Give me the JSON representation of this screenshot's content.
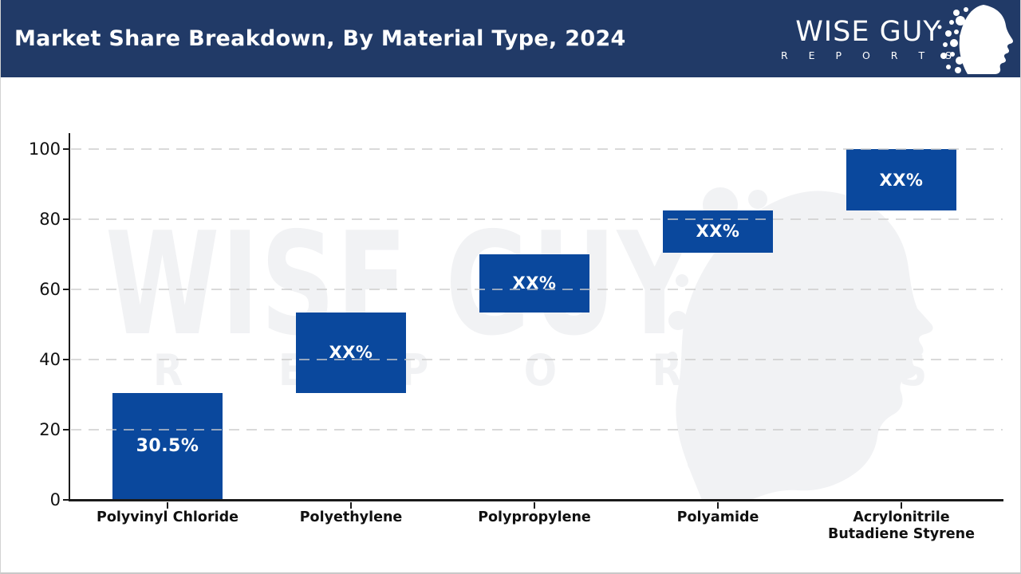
{
  "header": {
    "title": "Market Share Breakdown, By Material Type, 2024",
    "logo": {
      "line1": "WISE GUY",
      "line2": "R E P O R T S"
    }
  },
  "watermark": {
    "line1": "WISE GUY",
    "line2": "R E P O R T S"
  },
  "colors": {
    "header_bg": "#213a67",
    "bar": "#0a489d",
    "axis": "#1a1a1a",
    "gridline": "#dcdcdc",
    "watermark": "#f1f2f4",
    "title_text": "#ffffff"
  },
  "chart_data": {
    "type": "bar",
    "subtype": "waterfall",
    "title": "Market Share Breakdown, By Material Type, 2024",
    "xlabel": "",
    "ylabel": "",
    "ylim": [
      0,
      105
    ],
    "yticks": [
      0,
      20,
      40,
      60,
      80,
      100
    ],
    "grid": "horizontal-dashed",
    "legend": "none",
    "categories": [
      "Polyvinyl Chloride",
      "Polyethylene",
      "Polypropylene",
      "Polyamide",
      "Acrylonitrile\nButadiene Styrene"
    ],
    "bars": [
      {
        "category": "Polyvinyl Chloride",
        "start": 0,
        "end": 30.5,
        "label": "30.5%"
      },
      {
        "category": "Polyethylene",
        "start": 30.5,
        "end": 53.5,
        "label": "XX%"
      },
      {
        "category": "Polypropylene",
        "start": 53.5,
        "end": 70,
        "label": "XX%"
      },
      {
        "category": "Polyamide",
        "start": 70.5,
        "end": 82.5,
        "label": "XX%"
      },
      {
        "category": "Acrylonitrile\nButadiene Styrene",
        "start": 82.5,
        "end": 100,
        "label": "XX%"
      }
    ]
  }
}
